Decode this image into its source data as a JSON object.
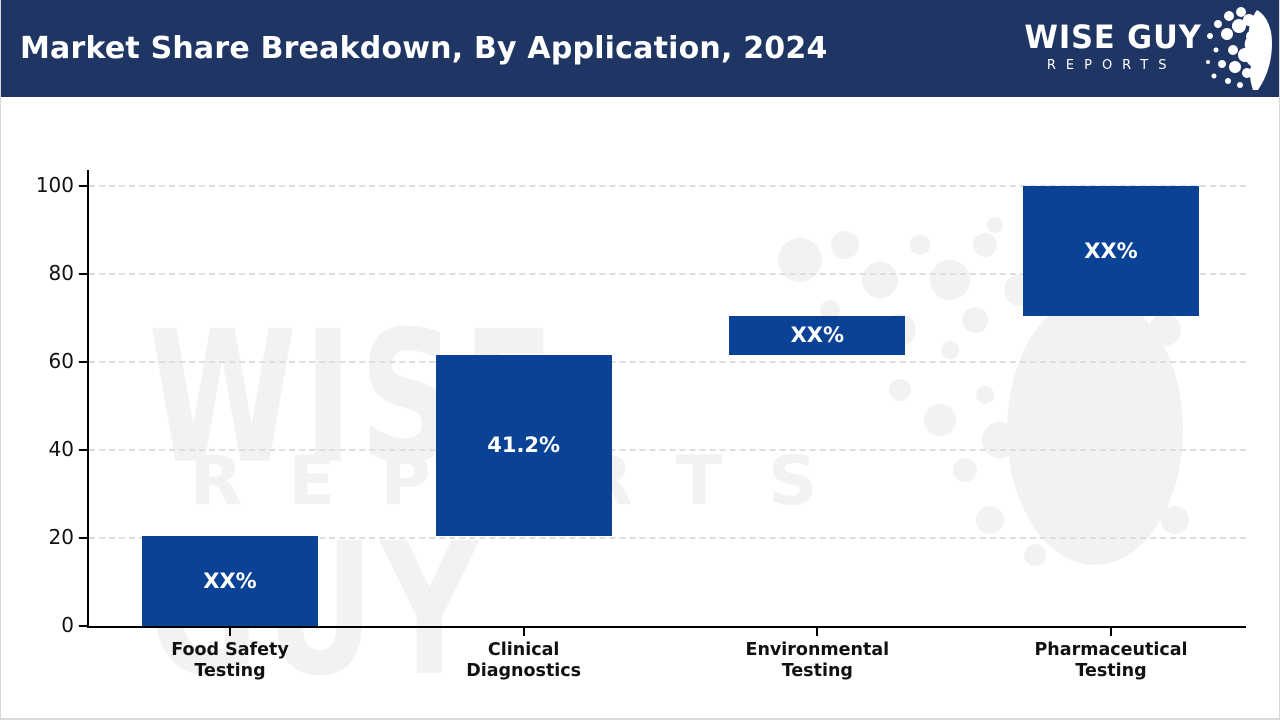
{
  "header": {
    "title": "Market Share Breakdown, By Application, 2024",
    "bg_color": "#1f3563",
    "logo": {
      "line1": "WISE GUY",
      "line2": "REPORTS"
    }
  },
  "watermark": {
    "line1": "WISE GUY",
    "line2": "REPORTS"
  },
  "chart_data": {
    "type": "bar",
    "subtype": "waterfall",
    "title": "Market Share Breakdown, By Application, 2024",
    "xlabel": "",
    "ylabel": "",
    "ylim": [
      0,
      100
    ],
    "yticks": [
      0,
      20,
      40,
      60,
      80,
      100
    ],
    "grid": "horizontal-dashed",
    "legend": "none",
    "bar_color": "#0a4296",
    "bar_label_color": "#ffffff",
    "categories": [
      "Food Safety Testing",
      "Clinical Diagnostics",
      "Environmental Testing",
      "Pharmaceutical Testing"
    ],
    "category_lines": [
      [
        "Food Safety",
        "Testing"
      ],
      [
        "Clinical",
        "Diagnostics"
      ],
      [
        "Environmental",
        "Testing"
      ],
      [
        "Pharmaceutical",
        "Testing"
      ]
    ],
    "segments": [
      {
        "category": "Food Safety Testing",
        "start": 0,
        "end": 20.5,
        "value": 20.5,
        "label": "XX%"
      },
      {
        "category": "Clinical Diagnostics",
        "start": 20.5,
        "end": 61.7,
        "value": 41.2,
        "label": "41.2%"
      },
      {
        "category": "Environmental Testing",
        "start": 61.7,
        "end": 70.4,
        "value": 8.7,
        "label": "XX%"
      },
      {
        "category": "Pharmaceutical Testing",
        "start": 70.4,
        "end": 100,
        "value": 29.6,
        "label": "XX%"
      }
    ]
  }
}
